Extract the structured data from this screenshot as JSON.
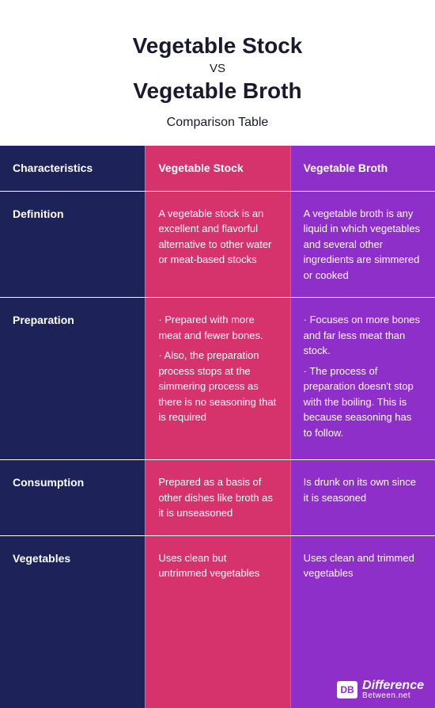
{
  "header": {
    "title_a": "Vegetable Stock",
    "vs": "VS",
    "title_b": "Vegetable Broth",
    "subtitle": "Comparison Table"
  },
  "colors": {
    "navy": "#1d2259",
    "pink": "#d6336c",
    "purple": "#8e2fc9",
    "footer_badge_text": "#8e2fc9"
  },
  "columns": {
    "label": "Characteristics",
    "stock": "Vegetable Stock",
    "broth": "Vegetable Broth"
  },
  "rows": [
    {
      "label": "Definition",
      "stock": "A vegetable stock is an excellent and flavorful alternative to other water or meat-based stocks",
      "broth": "A vegetable broth is any liquid in which vegetables and several other ingredients are simmered or cooked"
    },
    {
      "label": "Preparation",
      "stock_bullets": [
        "· Prepared with more meat and fewer bones.",
        "· Also, the preparation process stops at the simmering process as there is no seasoning that is required"
      ],
      "broth_bullets": [
        "· Focuses on more bones and far less meat than stock.",
        "· The process of preparation doesn't stop with the boiling. This is because seasoning has to follow."
      ]
    },
    {
      "label": "Consumption",
      "stock": "Prepared as a basis of other dishes like broth as it is unseasoned",
      "broth": "Is drunk on its own since it is seasoned"
    },
    {
      "label": "Vegetables",
      "stock": "Uses clean but untrimmed vegetables",
      "broth": "Uses clean and trimmed vegetables"
    }
  ],
  "footer": {
    "badge": "DB",
    "brand_big": "Difference",
    "brand_small": "Between.net"
  }
}
